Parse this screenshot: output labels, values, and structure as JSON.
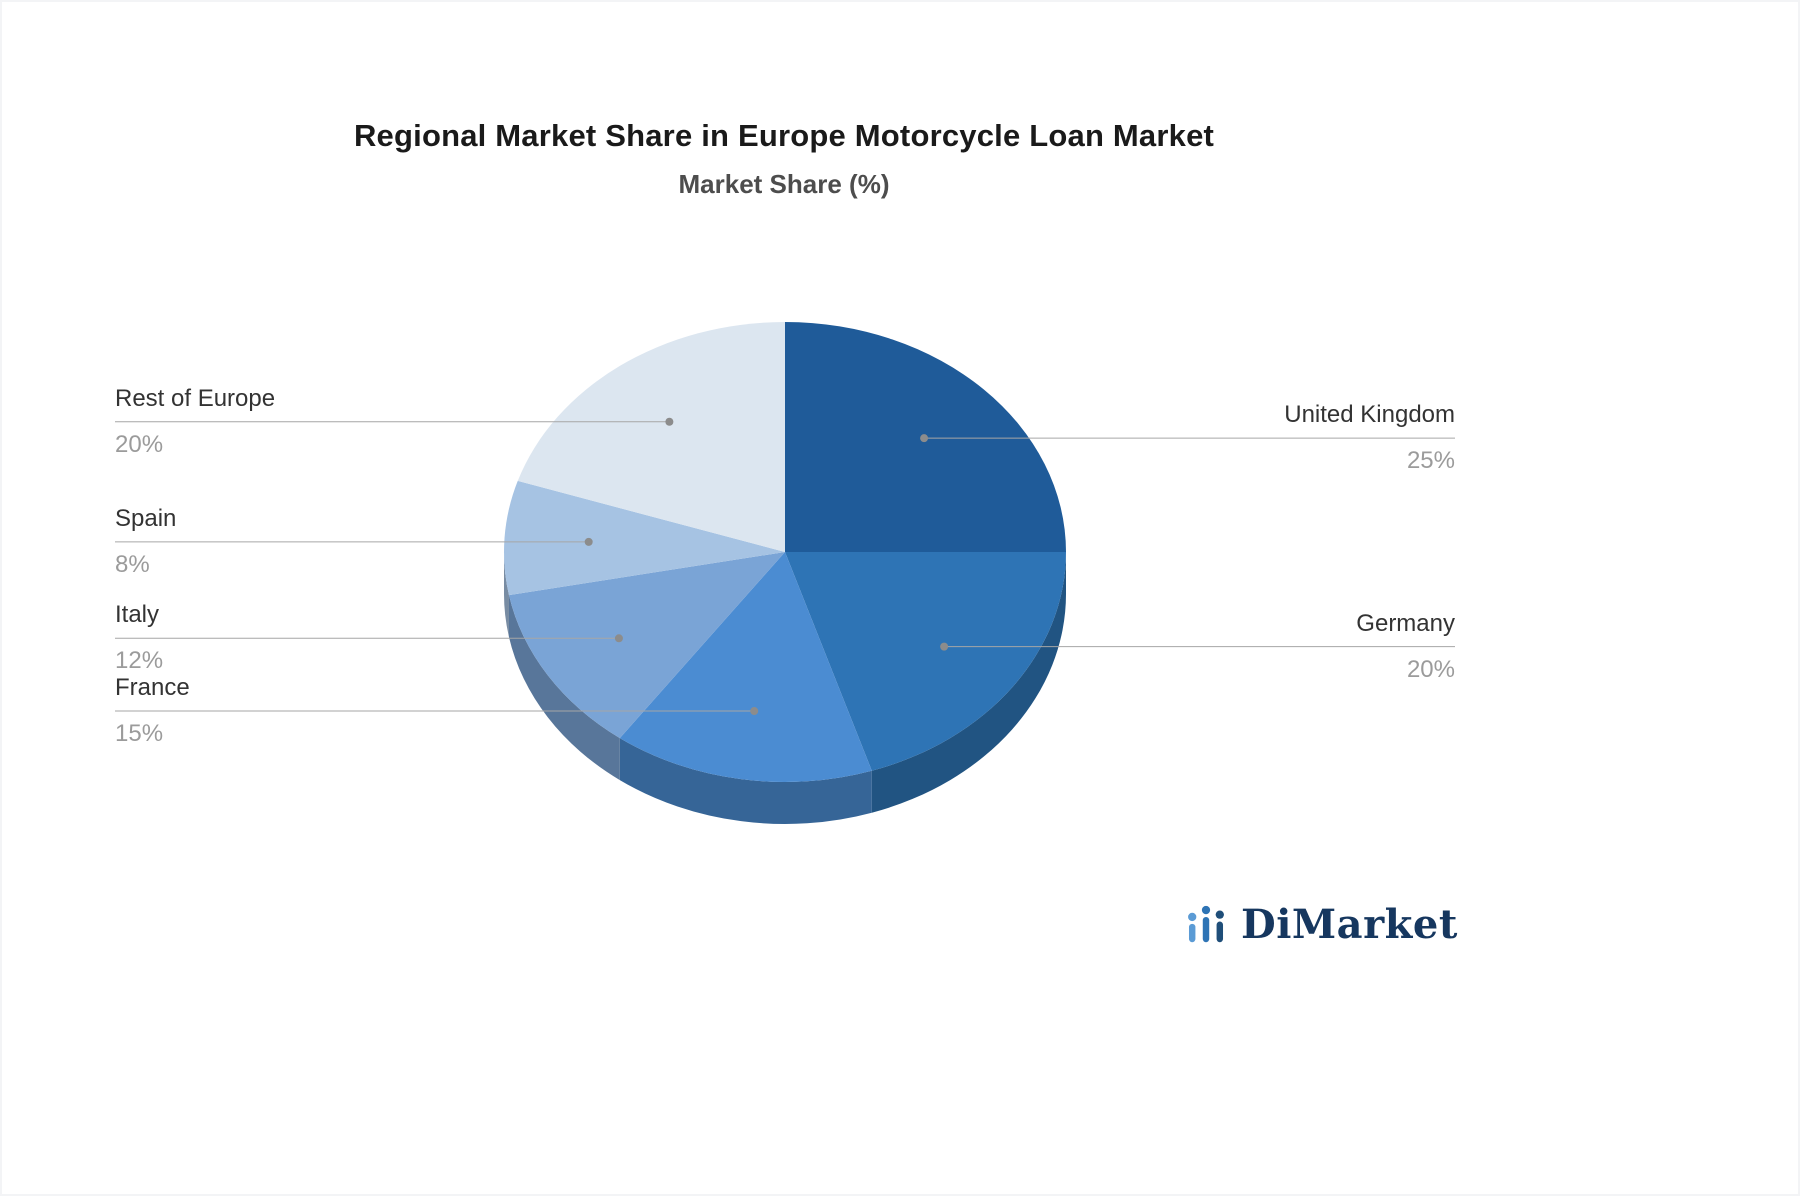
{
  "chart_data": {
    "type": "pie",
    "title": "Regional Market Share in Europe Motorcycle Loan Market",
    "subtitle": "Market Share (%)",
    "unit": "%",
    "categories": [
      "United Kingdom",
      "Germany",
      "France",
      "Italy",
      "Spain",
      "Rest of Europe"
    ],
    "values": [
      25,
      20,
      15,
      12,
      8,
      20
    ],
    "colors": [
      "#1F5B99",
      "#2E74B5",
      "#4B8CD2",
      "#7AA4D6",
      "#A6C3E3",
      "#DCE6F0"
    ],
    "start_angle": "top",
    "direction": "clockwise",
    "style": "3d",
    "labels_layout": "outside with leader lines",
    "label_name_color": "#333333",
    "label_value_color": "#9B9B9B",
    "leader_line_color": "#A6A6A6",
    "leader_dot_color": "#8C8C8C"
  },
  "logo": {
    "text": "DiMarket",
    "color": "#16375F",
    "icon": "bar-chart-dots-icon"
  }
}
